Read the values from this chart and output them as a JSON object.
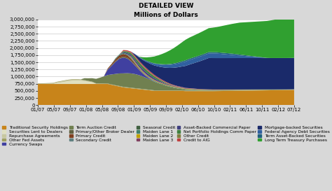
{
  "title": "DETAILED VIEW",
  "subtitle": "Millions of Dollars",
  "ylim": [
    0,
    3000000
  ],
  "yticks": [
    0,
    250000,
    500000,
    750000,
    1000000,
    1250000,
    1500000,
    1750000,
    2000000,
    2250000,
    2500000,
    2750000,
    3000000
  ],
  "ytick_labels": [
    "0",
    "250,000",
    "500,000",
    "750,000",
    "1,000,000",
    "1,250,000",
    "1,500,000",
    "1,750,000",
    "2,000,000",
    "2,250,000",
    "2,500,000",
    "2,750,000",
    "3,000,000"
  ],
  "x_labels": [
    "01/07",
    "05/07",
    "09/07",
    "01/08",
    "05/08",
    "09/08",
    "01/09",
    "05/09",
    "09/09",
    "02/10",
    "06/10",
    "10/10",
    "02/11",
    "06/11",
    "10/11",
    "02/12",
    "07/12"
  ],
  "fig_bg": "#d8d8d8",
  "plot_bg": "#ffffff",
  "grid_color": "#cccccc",
  "title_fontsize": 6.5,
  "subtitle_fontsize": 6,
  "tick_fontsize": 5,
  "legend_fontsize": 4.2,
  "series_colors": {
    "trad": "#c8841a",
    "lent": "#e0e0c0",
    "repo": "#c8c8a0",
    "other_fed": "#a0a060",
    "swaps": "#4040a0",
    "tac": "#708050",
    "broker": "#606040",
    "primary": "#804020",
    "secondary": "#608080",
    "seasonal": "#406040",
    "ml1": "#40806a",
    "ml2": "#c0a000",
    "ml3": "#804060",
    "abcp": "#404080",
    "comm": "#408040",
    "other_credit": "#808040",
    "aig": "#c04040",
    "mbs": "#1a2a6a",
    "fads": "#3060a0",
    "tabs": "#206080",
    "lttp": "#30a030"
  },
  "legend_entries": [
    [
      "Traditional Security Holdings",
      "#c8841a"
    ],
    [
      "Securities Lent to Dealers",
      "#e0e0c0"
    ],
    [
      "Repurchase Agreements",
      "#c8c8a0"
    ],
    [
      "Other Fed Assets",
      "#a0a060"
    ],
    [
      "Currency Swaps",
      "#4040a0"
    ],
    [
      "Term Auction Credit",
      "#708050"
    ],
    [
      "Primary/Other Broker Dealer",
      "#606040"
    ],
    [
      "Primary Credit",
      "#804020"
    ],
    [
      "Secondary Credit",
      "#608080"
    ],
    [
      "Seasonal Credit",
      "#406040"
    ],
    [
      "Maiden Lane 1",
      "#40806a"
    ],
    [
      "Maiden Lane 2",
      "#c0a000"
    ],
    [
      "Maiden Lane 3",
      "#804060"
    ],
    [
      "Asset-Backed Commercial Paper",
      "#404080"
    ],
    [
      "Net Portfolio Holdings Comm Paper",
      "#408040"
    ],
    [
      "Other Credit",
      "#808040"
    ],
    [
      "Credit to AIG",
      "#c04040"
    ],
    [
      "Mortgage-backed Securities",
      "#1a2a6a"
    ],
    [
      "Federal Agency Debt Securities",
      "#3060a0"
    ],
    [
      "Term Asset-Backed Securities",
      "#206080"
    ],
    [
      "Long Term Treasury Purchases",
      "#30a030"
    ]
  ]
}
